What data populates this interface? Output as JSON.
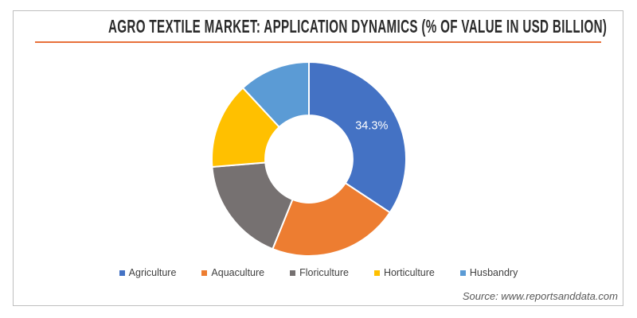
{
  "page": {
    "background": "#ffffff",
    "frame_border_color": "#bfbfbf"
  },
  "header": {
    "underline_color": "#e8703a",
    "title_color": "#2b2b2b"
  },
  "chart_data": {
    "type": "pie",
    "subtype": "donut",
    "title": "AGRO TEXTILE MARKET: APPLICATION DYNAMICS (% OF VALUE IN USD BILLION)",
    "categories": [
      "Agriculture",
      "Aquaculture",
      "Floriculture",
      "Horticulture",
      "Husbandry"
    ],
    "values": [
      34.3,
      21.8,
      17.6,
      14.4,
      11.9
    ],
    "colors": [
      "#4472C4",
      "#ED7D31",
      "#767171",
      "#FFC000",
      "#5B9BD5"
    ],
    "data_labels": [
      "34.3%",
      "",
      "",
      "",
      ""
    ],
    "data_label_color": "#ffffff",
    "start_angle_deg": 0,
    "clockwise": true,
    "inner_radius_ratio": 0.45,
    "slice_gap_color": "#ffffff",
    "legend_position": "bottom"
  },
  "footer": {
    "source_text": "Source: www.reportsanddata.com"
  }
}
